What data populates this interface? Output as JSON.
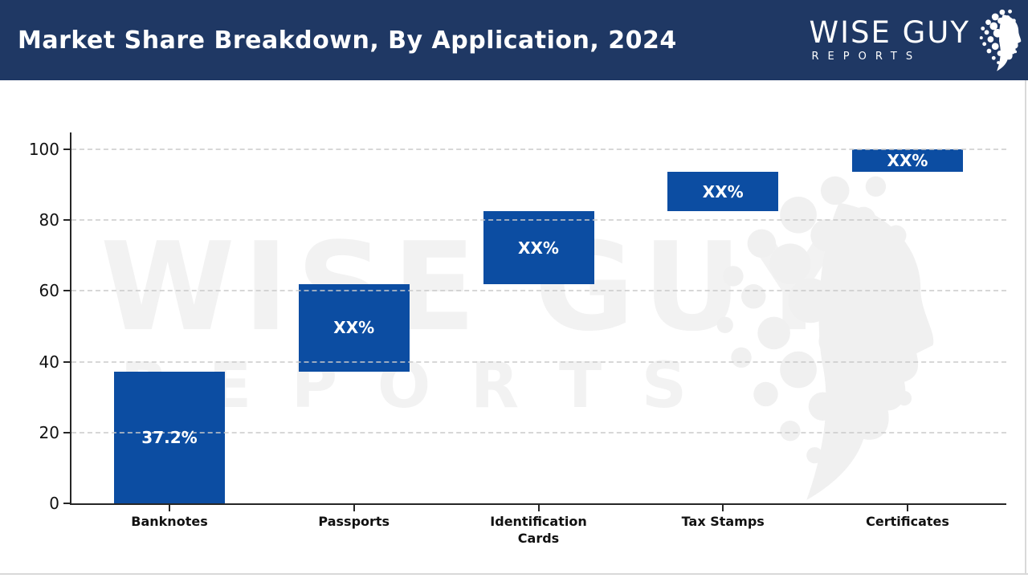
{
  "header": {
    "title": "Market Share Breakdown, By Application, 2024",
    "logo": {
      "line1": "WISE GUY",
      "line2": "REPORTS"
    }
  },
  "watermark": {
    "line1": "WISE GUY",
    "line2_letters": [
      "R",
      "E",
      "P",
      "O",
      "R",
      "T",
      "S"
    ]
  },
  "colors": {
    "header_bg": "#1f3864",
    "bar": "#0c4da2",
    "value_label": "#ffffff",
    "grid": "#c9c9c9",
    "axis": "#262626",
    "watermark": "#f2f2f2"
  },
  "chart_data": {
    "type": "bar",
    "subtype": "waterfall",
    "title": "Market Share Breakdown, By Application, 2024",
    "categories": [
      "Banknotes",
      "Passports",
      "Identification\nCards",
      "Tax Stamps",
      "Certificates"
    ],
    "segments": [
      {
        "category": "Banknotes",
        "start": 0,
        "end": 37.2,
        "label": "37.2%"
      },
      {
        "category": "Passports",
        "start": 37.2,
        "end": 61.9,
        "label": "XX%"
      },
      {
        "category": "Identification Cards",
        "start": 61.9,
        "end": 82.5,
        "label": "XX%"
      },
      {
        "category": "Tax Stamps",
        "start": 82.5,
        "end": 93.6,
        "label": "XX%"
      },
      {
        "category": "Certificates",
        "start": 93.6,
        "end": 100,
        "label": "XX%"
      }
    ],
    "ylabel": "",
    "xlabel": "",
    "ylim": [
      0,
      104
    ],
    "yticks": [
      0,
      20,
      40,
      60,
      80,
      100
    ],
    "grid": "horizontal-dashed",
    "legend": "none",
    "bar_color": "#0c4da2",
    "value_label_color": "#ffffff"
  }
}
